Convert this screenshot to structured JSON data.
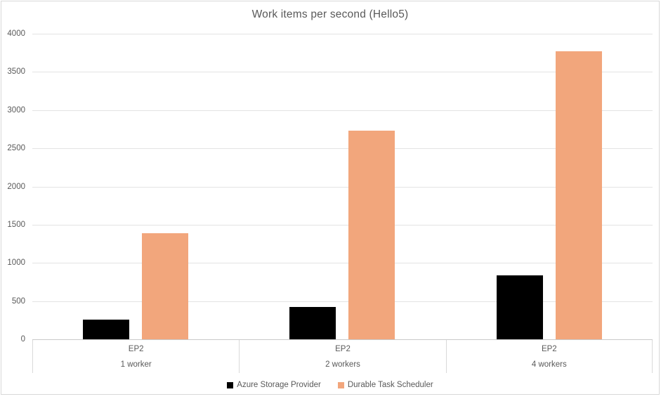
{
  "chart_data": {
    "type": "bar",
    "title": "Work items per second (Hello5)",
    "categories": [
      "EP2 / 1 worker",
      "EP2 / 2 workers",
      "EP2 / 4 workers"
    ],
    "category_line1": [
      "EP2",
      "EP2",
      "EP2"
    ],
    "category_line2": [
      "1 worker",
      "2 workers",
      "4 workers"
    ],
    "series": [
      {
        "name": "Azure Storage Provider",
        "color": "#000000",
        "values": [
          260,
          420,
          840
        ]
      },
      {
        "name": "Durable Task Scheduler",
        "color": "#F2A67C",
        "values": [
          1390,
          2730,
          3770
        ]
      }
    ],
    "xlabel": "",
    "ylabel": "",
    "ylim": [
      0,
      4000
    ],
    "ytick_step": 500,
    "yticks": [
      0,
      500,
      1000,
      1500,
      2000,
      2500,
      3000,
      3500,
      4000
    ],
    "grid": true,
    "legend_position": "bottom"
  },
  "colors": {
    "series_azure_storage_provider": "#000000",
    "series_durable_task_scheduler": "#F2A67C",
    "text": "#595959",
    "gridline": "#E3E3E3",
    "axis_line": "#C9C9C9",
    "separator": "#D9D9D9",
    "background": "#FFFFFF"
  }
}
